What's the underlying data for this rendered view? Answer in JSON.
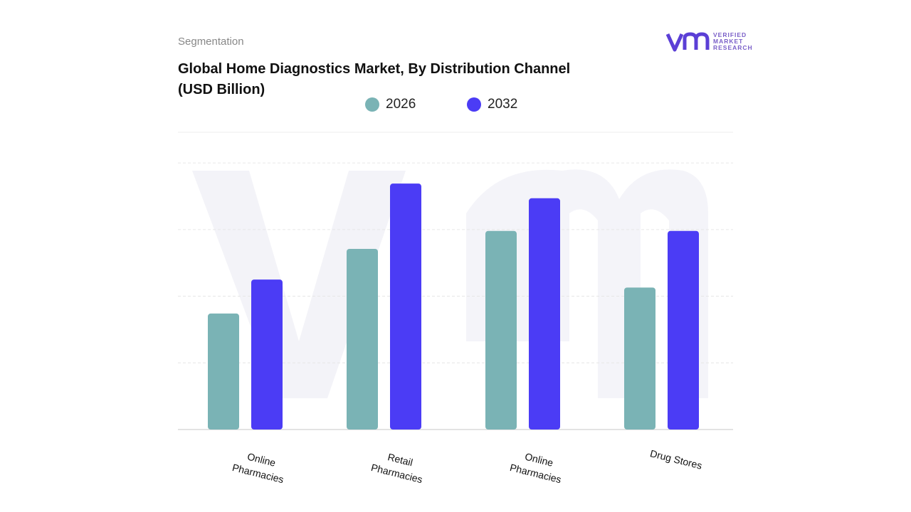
{
  "header": {
    "eyebrow": "Segmentation",
    "logo": [
      "VERIFIED",
      "MARKET",
      "RESEARCH"
    ]
  },
  "chart_data": {
    "type": "bar",
    "title": "Global Home Diagnostics Market, By Distribution Channel (USD Billion)",
    "categories": [
      "Online Pharmacies",
      "Retail Pharmacies",
      "Online Pharmacies",
      "Drug Stores"
    ],
    "series": [
      {
        "name": "2026",
        "color": "#7ab3b5",
        "values": [
          1.74,
          2.71,
          2.98,
          2.13
        ]
      },
      {
        "name": "2032",
        "color": "#4b3cf5",
        "values": [
          2.25,
          3.69,
          3.47,
          2.98
        ]
      }
    ],
    "ylim": [
      0,
      4.46
    ],
    "gridlines": [
      1,
      2,
      3,
      4
    ]
  }
}
